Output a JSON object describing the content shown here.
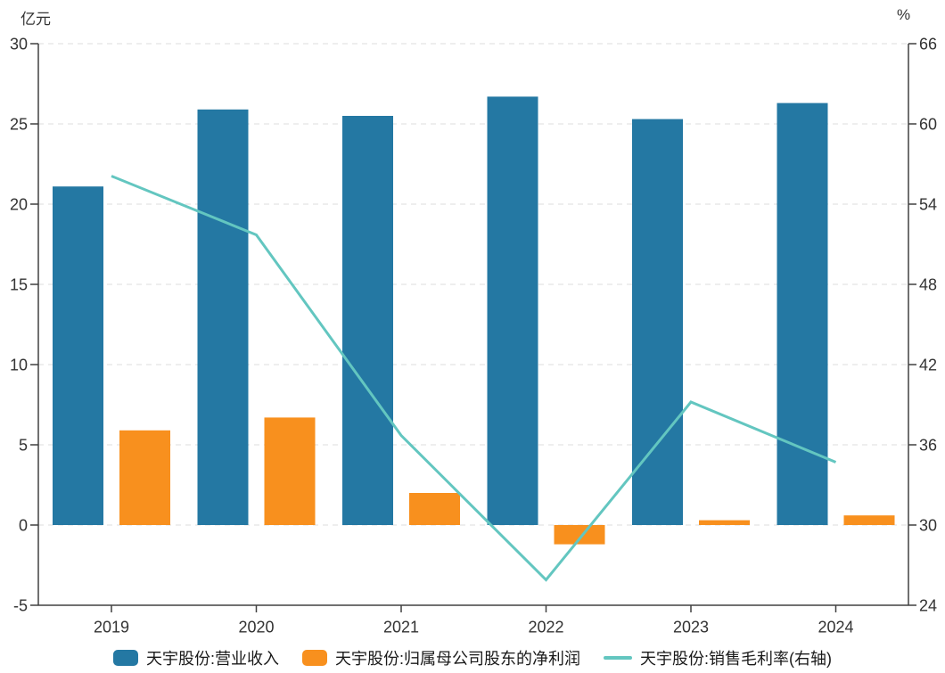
{
  "chart_data": {
    "type": "combo",
    "categories": [
      "2019",
      "2020",
      "2021",
      "2022",
      "2023",
      "2024"
    ],
    "series": [
      {
        "name": "天宇股份:营业收入",
        "type": "bar",
        "axis": "left",
        "color": "#2478A3",
        "values": [
          21.1,
          25.9,
          25.5,
          26.7,
          25.3,
          26.3
        ]
      },
      {
        "name": "天宇股份:归属母公司股东的净利润",
        "type": "bar",
        "axis": "left",
        "color": "#F8901E",
        "values": [
          5.9,
          6.7,
          2.0,
          -1.2,
          0.3,
          0.6
        ]
      },
      {
        "name": "天宇股份:销售毛利率(右轴)",
        "type": "line",
        "axis": "right",
        "color": "#63C6C0",
        "values": [
          56.1,
          51.7,
          36.7,
          25.9,
          39.2,
          34.7
        ]
      }
    ],
    "left_axis": {
      "unit": "亿元",
      "min": -5,
      "max": 30,
      "step": 5,
      "ticks": [
        30,
        25,
        20,
        15,
        10,
        5,
        0,
        -5
      ]
    },
    "right_axis": {
      "unit": "%",
      "min": 24,
      "max": 66,
      "step": 6,
      "ticks": [
        66,
        60,
        54,
        48,
        42,
        36,
        30,
        24
      ]
    },
    "grid": "horizontal-dashed",
    "legend_position": "bottom"
  },
  "colors": {
    "axis": "#404040",
    "grid": "#DDDDDD",
    "text": "#333333",
    "background": "#FFFFFF"
  }
}
